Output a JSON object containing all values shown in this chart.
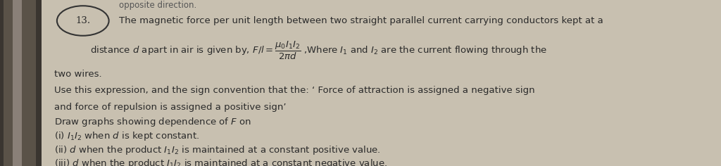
{
  "bg_color": "#c8c0b0",
  "text_color": "#2a2a2a",
  "fs": 9.5,
  "circle_label": "13.",
  "line1": "The magnetic force per unit length between two straight parallel current carrying conductors kept at a",
  "line2_pre": "distance ",
  "line2_mid": "d",
  "line2_post": " apart in air is given by, ",
  "line2_formula": "F/l = \\frac{\\mu_0 I_1 I_2}{2\\pi d}",
  "line2_post2": " ,Where ",
  "line2_I1": "I_1",
  "line2_and": " and ",
  "line2_I2": "I_2",
  "line2_post3": " are the current flowing through the",
  "line3": "two wires.",
  "line4": "Use this expression, and the sign convention that the: ‘ Force of attraction is assigned a negative sign",
  "line5": "and force of repulsion is assigned a positive sign’",
  "line6_pre": "Draw graphs showing dependence of ",
  "line6_F": "F",
  "line6_post": " on",
  "line7_pre": "(i) ",
  "line7_I1I2": "I_1 I_2",
  "line7_post": " when ",
  "line7_d": "d",
  "line7_end": " is kept constant.",
  "line8_pre": "(ii) ",
  "line8_d": "d",
  "line8_mid": " when the product ",
  "line8_I1I2": "I_1 I_2",
  "line8_post": " is maintained at a constant positive value.",
  "line9_pre": "(iii) ",
  "line9_d": "d",
  "line9_mid": " when the product ",
  "line9_I1I2": "I_1 I_2",
  "line9_post": " is maintained at a constant negative value."
}
